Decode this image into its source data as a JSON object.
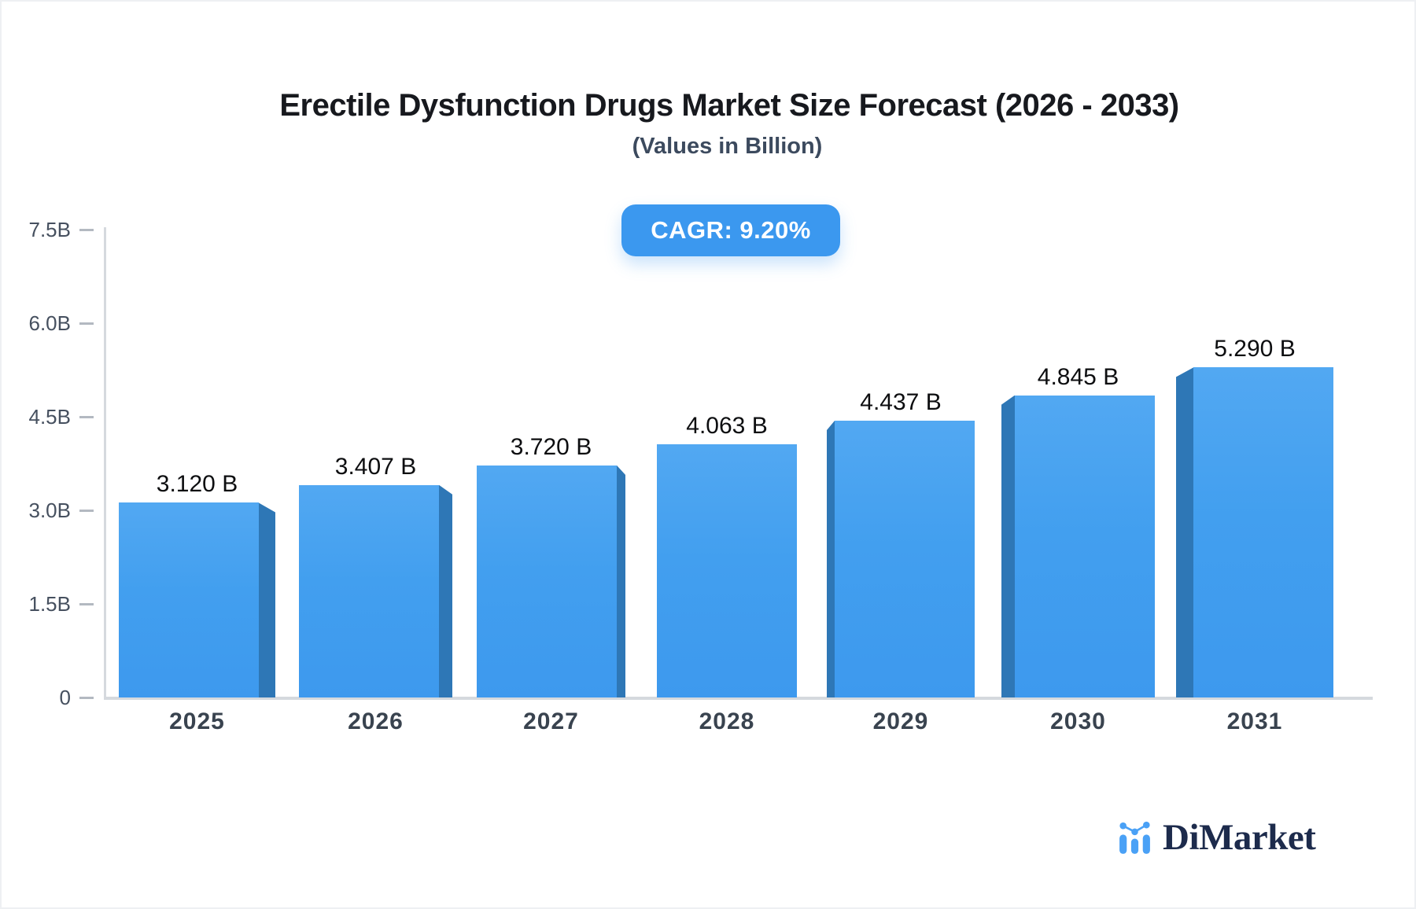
{
  "header": {
    "title": "Erectile Dysfunction Drugs Market Size Forecast (2026 - 2033)",
    "subtitle": "(Values in Billion)",
    "cagr_badge": "CAGR: 9.20%"
  },
  "chart_data": {
    "type": "bar",
    "title": "Erectile Dysfunction Drugs Market Size Forecast (2026 - 2033)",
    "subtitle": "(Values in Billion)",
    "annotation": "CAGR: 9.20%",
    "categories": [
      "2025",
      "2026",
      "2027",
      "2028",
      "2029",
      "2030",
      "2031"
    ],
    "values": [
      3.12,
      3.407,
      3.72,
      4.063,
      4.437,
      4.845,
      5.29
    ],
    "bar_labels": [
      "3.120 B",
      "3.407 B",
      "3.720 B",
      "4.063 B",
      "4.437 B",
      "4.845 B",
      "5.290 B"
    ],
    "xlabel": "",
    "ylabel": "",
    "units": "Billion",
    "ylim": [
      0,
      7.5
    ],
    "y_tick_values": [
      0,
      1.5,
      3.0,
      4.5,
      6.0,
      7.5
    ],
    "y_tick_labels": [
      "0",
      "1.5B",
      "3.0B",
      "4.5B",
      "6.0B",
      "7.5B"
    ],
    "grid": false,
    "legend": false,
    "bar_style": "3d-perspective",
    "bar_face_color": "#429FEF",
    "bar_side_color": "#2E77B6"
  },
  "branding": {
    "logo_text": "DiMarket",
    "logo_icon": "bar-chart-trend-icon",
    "logo_icon_color": "#4AA1F6",
    "logo_text_color": "#1D2B4C"
  },
  "colors": {
    "accent_blue": "#3B98EF",
    "badge_text": "#FFFFFF",
    "axis_line": "#D5D9DE",
    "tick_dash": "#B3B9C1",
    "y_label": "#46505F",
    "x_label": "#39434F",
    "value_label": "#0D0E10",
    "title": "#17191E",
    "subtitle": "#3C4A5E",
    "background": "#FFFFFF"
  }
}
